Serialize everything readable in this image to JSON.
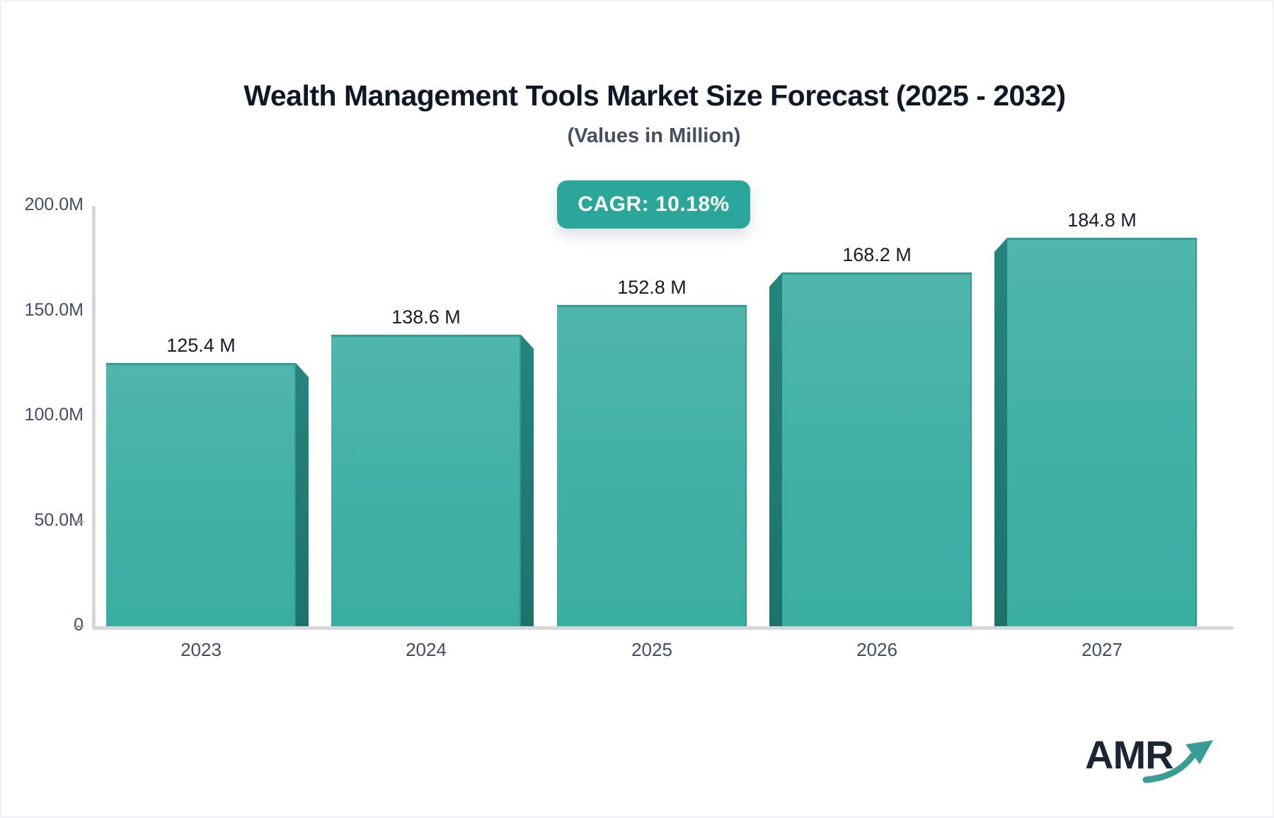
{
  "header": {
    "title": "Wealth Management Tools Market Size Forecast (2025 - 2032)",
    "subtitle": "(Values in Million)"
  },
  "badge": {
    "label": "CAGR: 10.18%"
  },
  "logo": {
    "text": "AMR",
    "arrow_icon": "growth-arrow-icon"
  },
  "colors": {
    "bar_top": "#50b6ad",
    "bar_bottom": "#3aada1",
    "bar_top_edge": "#2f9e95",
    "bar_side_face": "#1d726c",
    "badge_bg": "#2aa69b",
    "axis_line": "#d5d7da",
    "tick": "#9aa1a9",
    "title_text": "#0f1826",
    "subtitle_text": "#445063",
    "axis_label_text": "#414d63",
    "value_label_text": "#141e2b",
    "logo_text": "#1b2533",
    "logo_arrow": "#3a9d95"
  },
  "chart_data": {
    "type": "bar",
    "title": "Wealth Management Tools Market Size Forecast (2025 - 2032)",
    "subtitle": "(Values in Million)",
    "categories": [
      "2023",
      "2024",
      "2025",
      "2026",
      "2027"
    ],
    "values": [
      125.4,
      138.6,
      152.8,
      168.2,
      184.8
    ],
    "bar_labels": [
      "125.4 M",
      "138.6 M",
      "152.8 M",
      "168.2 M",
      "184.8 M"
    ],
    "xlabel": "",
    "ylabel": "",
    "ylim": [
      0,
      200
    ],
    "yticks": [
      {
        "label": "200.0M",
        "value": 200,
        "dash": false
      },
      {
        "label": "150.0M",
        "value": 150,
        "dash": false
      },
      {
        "label": "100.0M",
        "value": 100,
        "dash": false
      },
      {
        "label": "50.0M",
        "value": 50,
        "dash": true
      },
      {
        "label": "0",
        "value": 0,
        "dash": true
      }
    ],
    "grid": false,
    "legend": "none",
    "annotation": "CAGR: 10.18%"
  }
}
